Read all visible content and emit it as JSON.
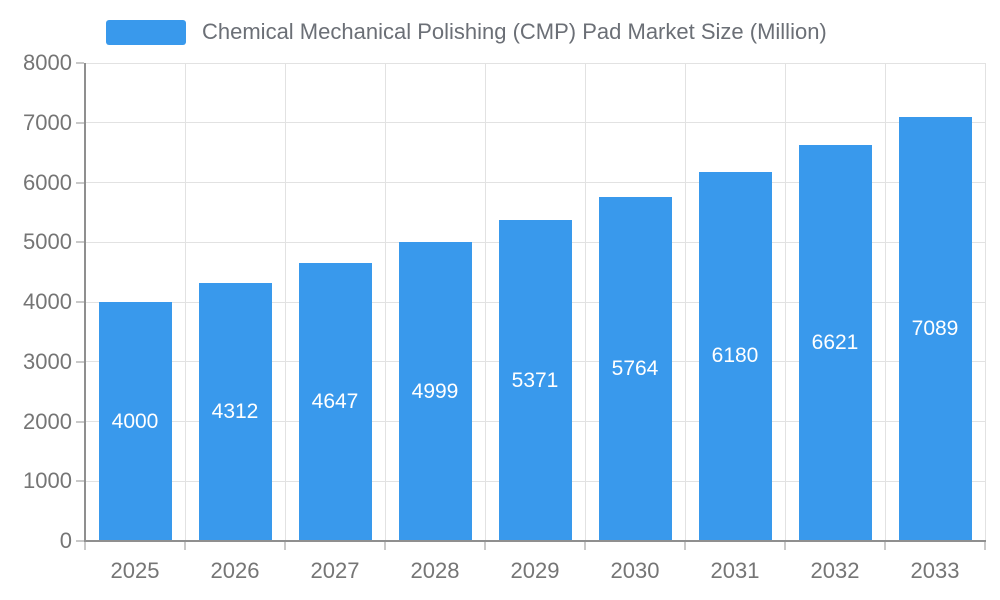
{
  "chart_data": {
    "type": "bar",
    "title": "Chemical Mechanical Polishing (CMP) Pad Market Size (Million)",
    "legend": "Chemical Mechanical Polishing (CMP) Pad Market Size (Million)",
    "legend_position": "top",
    "categories": [
      "2025",
      "2026",
      "2027",
      "2028",
      "2029",
      "2030",
      "2031",
      "2032",
      "2033"
    ],
    "values": [
      4000,
      4312,
      4647,
      4999,
      5371,
      5764,
      6180,
      6621,
      7089
    ],
    "xlabel": "",
    "ylabel": "",
    "ylim": [
      0,
      8000
    ],
    "yticks": [
      0,
      1000,
      2000,
      3000,
      4000,
      5000,
      6000,
      7000,
      8000
    ],
    "grid": true,
    "bar_value_labels_inside": true,
    "colors": {
      "bar": "#3999EC",
      "bar_label": "#FFFFFF",
      "axis_line": "#8F8F8F",
      "grid_line": "#E2E2E2",
      "tick_mark": "#C9C9C9",
      "tick_label": "#757575",
      "legend_text": "#6B6F76",
      "background": "#FFFFFF"
    }
  }
}
